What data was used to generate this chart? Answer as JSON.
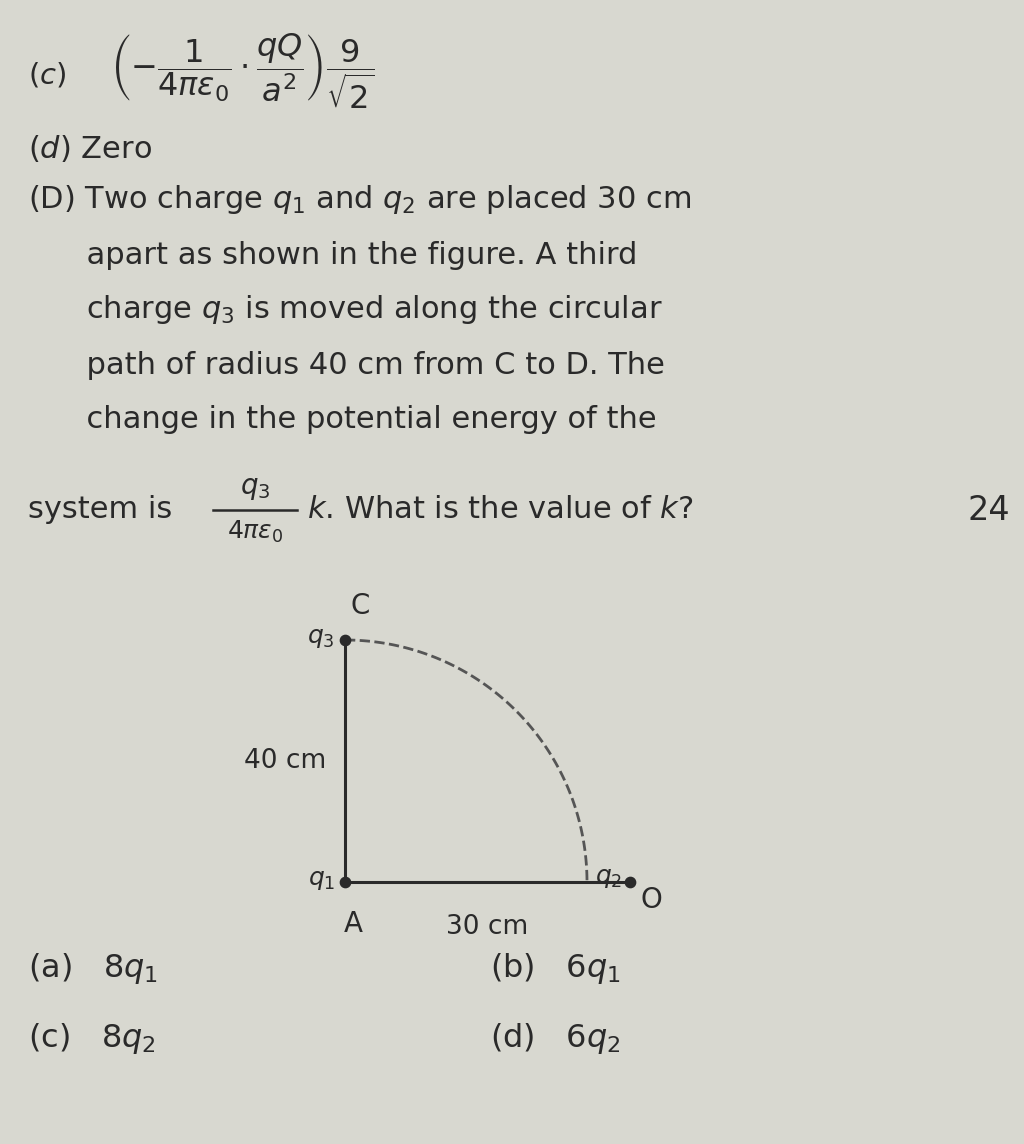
{
  "bg_color": "#d8d8d0",
  "text_color": "#2a2a2a",
  "fig_width": 10.24,
  "fig_height": 11.44,
  "dpi": 100,
  "lines_section_D": [
    "(D) Two charge $q_1$ and $q_2$ are placed 30 cm",
    "      apart as shown in the figure. A third",
    "      charge $q_3$ is moved along the circular",
    "      path of radius 40 cm from C to D. The",
    "      change in the potential energy of the"
  ],
  "options": [
    [
      "(a)   $8q_1$",
      "(b)   $6q_1$"
    ],
    [
      "(c)   $8q_2$",
      "(d)   $6q_2$"
    ]
  ],
  "fig_labels": {
    "C": "C",
    "q3": "$q_3$",
    "A": "A",
    "q1": "$q_1$",
    "q2": "$q_2$",
    "O": "O",
    "dist_v": "40 cm",
    "dist_h": "30 cm"
  }
}
